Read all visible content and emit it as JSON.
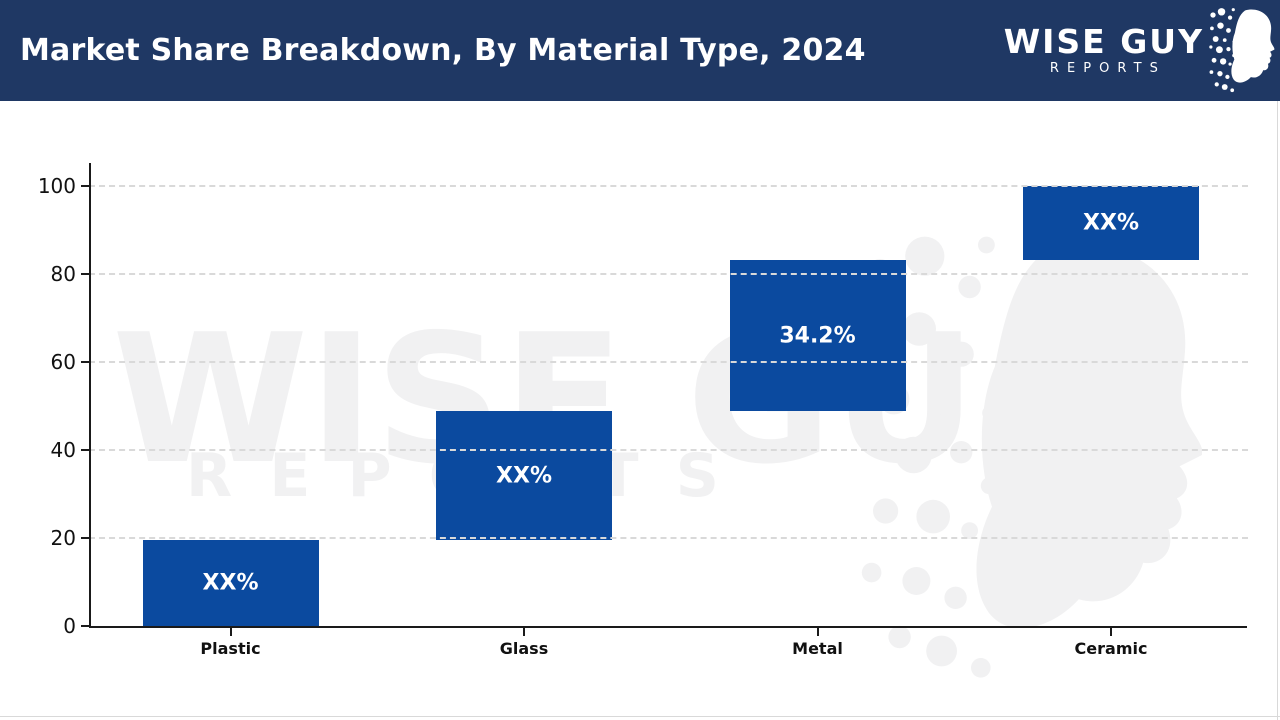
{
  "header": {
    "title": "Market Share Breakdown, By Material Type, 2024",
    "logo": {
      "line1": "WISE GUY",
      "line2": "REPORTS"
    }
  },
  "watermark": {
    "line1": "WISE GU",
    "line2": "REPORTS"
  },
  "colors": {
    "header_bg": "#1F3864",
    "bar": "#0B4A9F",
    "axis": "#1a1a1a",
    "gridline": "#d9d9d9",
    "watermark": "#f1f1f2",
    "bar_label_text": "#ffffff"
  },
  "chart_data": {
    "type": "bar",
    "subtype": "waterfall-floating-bars",
    "title": "Market Share Breakdown, By Material Type, 2024",
    "categories": [
      "Plastic",
      "Glass",
      "Metal",
      "Ceramic"
    ],
    "segments": [
      {
        "category": "Plastic",
        "start": 0,
        "end": 19.5,
        "label": "XX%"
      },
      {
        "category": "Glass",
        "start": 19.5,
        "end": 48.9,
        "label": "XX%"
      },
      {
        "category": "Metal",
        "start": 48.9,
        "end": 83.1,
        "label": "34.2%"
      },
      {
        "category": "Ceramic",
        "start": 83.1,
        "end": 100,
        "label": "XX%"
      }
    ],
    "xlabel": "",
    "ylabel": "",
    "ylim": [
      0,
      100
    ],
    "yticks": [
      0,
      20,
      40,
      60,
      80,
      100
    ],
    "grid": "horizontal-dashed",
    "legend": "none"
  }
}
